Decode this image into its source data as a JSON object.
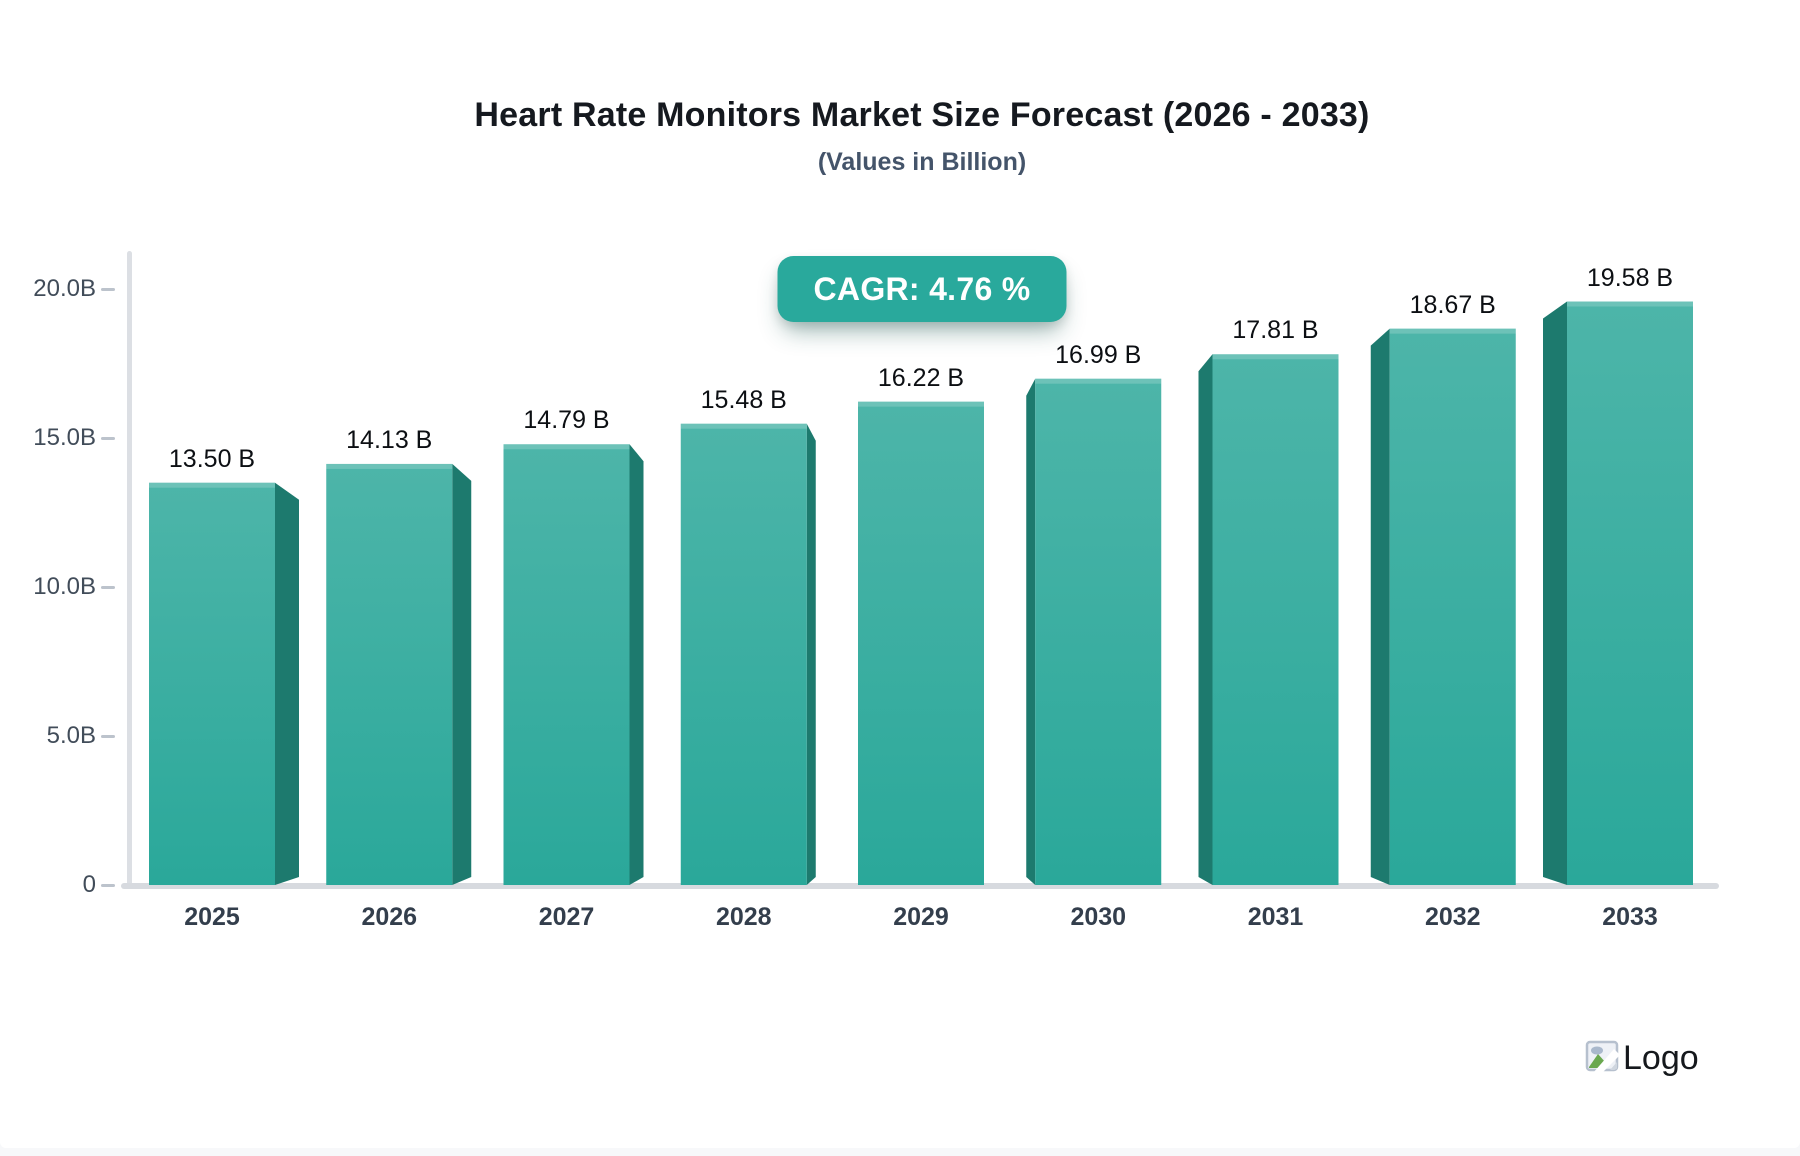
{
  "header": {
    "title": "Heart Rate Monitors Market Size Forecast (2026 - 2033)",
    "subtitle": "(Values in Billion)"
  },
  "badge": {
    "label": "CAGR: 4.76 %"
  },
  "logo": {
    "text": "Logo",
    "icon": "broken-image-icon"
  },
  "colors": {
    "bar_face_top": "#4db5a9",
    "bar_face_bottom": "#2aa89a",
    "bar_side": "#1d7a6e",
    "bar_top_highlight": "rgba(255,255,255,0.18)",
    "badge_bg": "#29a99c",
    "axis": "#d7dadf",
    "tick": "#bcc3cc",
    "title_text": "#15191f",
    "subtitle_text": "#44546a",
    "value_label_text": "#0c0f13",
    "year_label_text": "#333e4c",
    "ytick_text": "#414c59"
  },
  "chart_data": {
    "type": "bar",
    "style": "3d-perspective-bars",
    "title": "Heart Rate Monitors Market Size Forecast (2026 - 2033)",
    "subtitle": "(Values in Billion)",
    "annotation": "CAGR: 4.76 %",
    "categories": [
      "2025",
      "2026",
      "2027",
      "2028",
      "2029",
      "2030",
      "2031",
      "2032",
      "2033"
    ],
    "values": [
      13.5,
      14.13,
      14.79,
      15.48,
      16.22,
      16.99,
      17.81,
      18.67,
      19.58
    ],
    "value_labels": [
      "13.50 B",
      "14.13 B",
      "14.79 B",
      "15.48 B",
      "16.22 B",
      "16.99 B",
      "17.81 B",
      "18.67 B",
      "19.58 B"
    ],
    "xlabel": "",
    "ylabel": "",
    "ylim": [
      0,
      20
    ],
    "grid": false,
    "legend": false,
    "yticks": [
      {
        "label": "20.0B",
        "value": 20
      },
      {
        "label": "15.0B",
        "value": 15
      },
      {
        "label": "10.0B",
        "value": 10
      },
      {
        "label": "5.0B",
        "value": 5
      },
      {
        "label": "0",
        "value": 0
      }
    ]
  }
}
